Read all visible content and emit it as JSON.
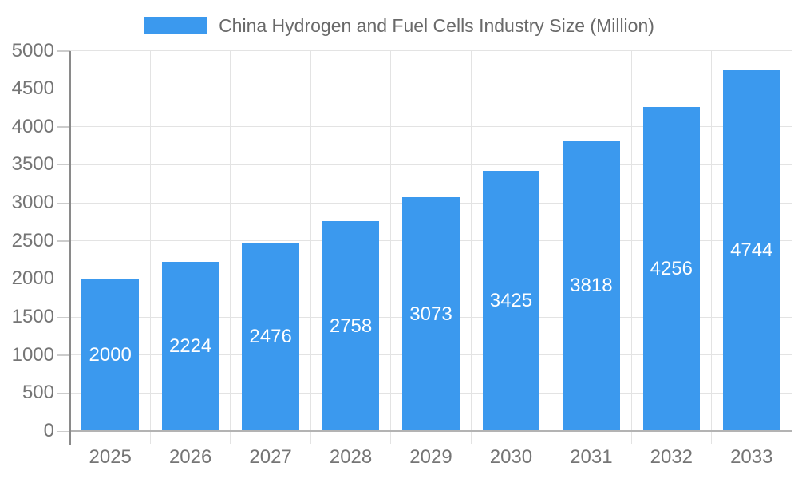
{
  "legend": {
    "items": [
      {
        "label": "China Hydrogen and Fuel Cells Industry Size (Million)",
        "color": "#3b99ee"
      }
    ]
  },
  "chart_data": {
    "type": "bar",
    "title": "China Hydrogen and Fuel Cells Industry Size (Million)",
    "categories": [
      "2025",
      "2026",
      "2027",
      "2028",
      "2029",
      "2030",
      "2031",
      "2032",
      "2033"
    ],
    "series": [
      {
        "name": "China Hydrogen and Fuel Cells Industry Size (Million)",
        "values": [
          2000,
          2224,
          2476,
          2758,
          3073,
          3425,
          3818,
          4256,
          4744
        ]
      }
    ],
    "value_labels": [
      2000,
      2224,
      2476,
      2758,
      3073,
      3425,
      3818,
      4256,
      4744
    ],
    "xlabel": "",
    "ylabel": "",
    "ylim": [
      0,
      5000
    ],
    "ytick_step": 500,
    "yticks": [
      0,
      500,
      1000,
      1500,
      2000,
      2500,
      3000,
      3500,
      4000,
      4500,
      5000
    ],
    "grid": true,
    "legend_position": "top",
    "colors": {
      "bar": "#3b99ee",
      "value_label": "#ffffff",
      "axis_text": "#757575",
      "legend_text": "#696969",
      "gridline": "#e3e3e3",
      "tick": "#cccccc",
      "zero_line": "#b3b3b3",
      "axis_line": "#8a8a8a"
    }
  }
}
